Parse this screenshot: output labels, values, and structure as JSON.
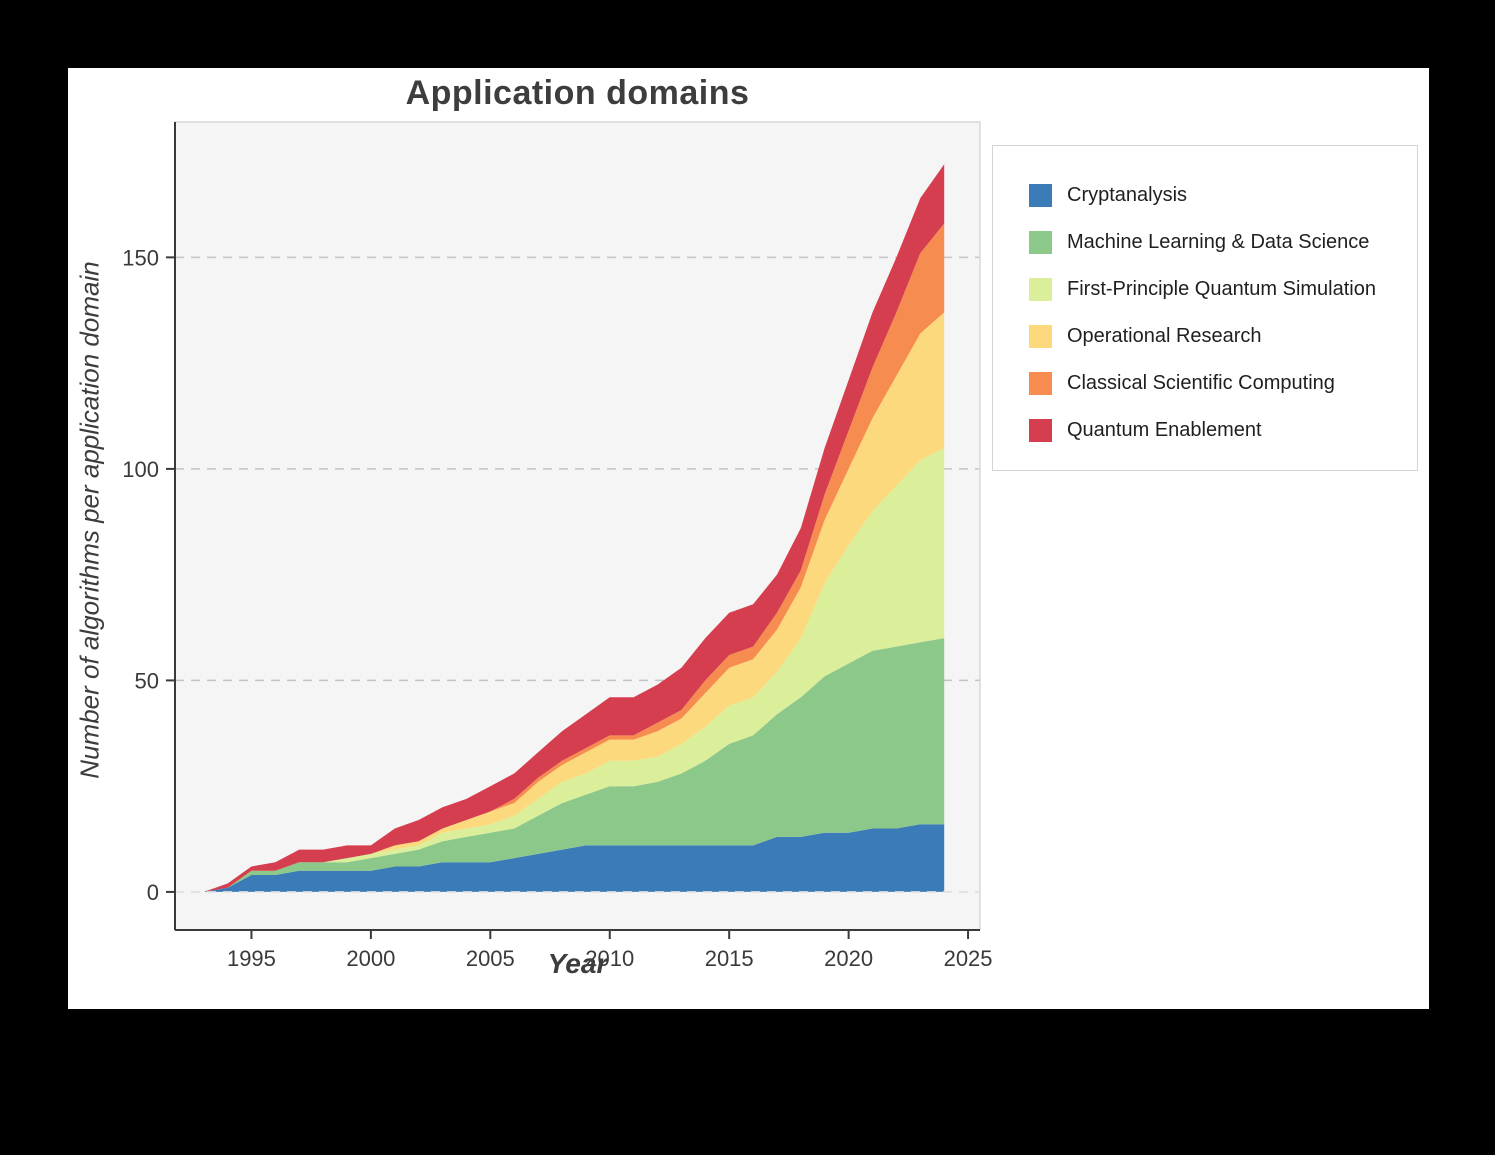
{
  "chart_data": {
    "type": "area",
    "stacked": true,
    "title": "Application domains",
    "xlabel": "Year",
    "ylabel": "Number of algorithms per application domain",
    "x": [
      1993,
      1994,
      1995,
      1996,
      1997,
      1998,
      1999,
      2000,
      2001,
      2002,
      2003,
      2004,
      2005,
      2006,
      2007,
      2008,
      2009,
      2010,
      2011,
      2012,
      2013,
      2014,
      2015,
      2016,
      2017,
      2018,
      2019,
      2020,
      2021,
      2022,
      2023,
      2024
    ],
    "series": [
      {
        "name": "Cryptanalysis",
        "color": "#3b7cb8",
        "values": [
          0,
          1,
          4,
          4,
          5,
          5,
          5,
          5,
          6,
          6,
          7,
          7,
          7,
          8,
          9,
          10,
          11,
          11,
          11,
          11,
          11,
          11,
          11,
          11,
          13,
          13,
          14,
          14,
          15,
          15,
          16,
          16
        ]
      },
      {
        "name": "Machine Learning & Data Science",
        "color": "#8cc88a",
        "values": [
          0,
          0,
          1,
          1,
          2,
          2,
          2,
          3,
          3,
          4,
          5,
          6,
          7,
          7,
          9,
          11,
          12,
          14,
          14,
          15,
          17,
          20,
          24,
          26,
          29,
          33,
          37,
          40,
          42,
          43,
          43,
          44
        ]
      },
      {
        "name": "First-Principle Quantum Simulation",
        "color": "#dbee9a",
        "values": [
          0,
          0,
          0,
          0,
          0,
          0,
          1,
          1,
          1,
          1,
          2,
          2,
          2,
          3,
          4,
          5,
          5,
          6,
          6,
          6,
          7,
          8,
          9,
          9,
          10,
          14,
          22,
          28,
          33,
          38,
          43,
          45
        ]
      },
      {
        "name": "Operational Research",
        "color": "#fdd97e",
        "values": [
          0,
          0,
          0,
          0,
          0,
          0,
          0,
          0,
          1,
          1,
          1,
          2,
          3,
          3,
          4,
          4,
          5,
          5,
          5,
          6,
          6,
          8,
          9,
          9,
          10,
          12,
          15,
          18,
          22,
          26,
          30,
          32
        ]
      },
      {
        "name": "Classical Scientific Computing",
        "color": "#f78c51",
        "values": [
          0,
          0,
          0,
          0,
          0,
          0,
          0,
          0,
          0,
          0,
          0,
          0,
          0,
          1,
          1,
          1,
          1,
          1,
          1,
          2,
          2,
          3,
          3,
          3,
          4,
          4,
          6,
          9,
          12,
          15,
          19,
          21
        ]
      },
      {
        "name": "Quantum Enablement",
        "color": "#d53e4f",
        "values": [
          0,
          1,
          1,
          2,
          3,
          3,
          3,
          2,
          4,
          5,
          5,
          5,
          6,
          6,
          6,
          7,
          8,
          9,
          9,
          9,
          10,
          10,
          10,
          10,
          9,
          10,
          11,
          12,
          13,
          13,
          13,
          14
        ]
      }
    ],
    "xticks": [
      1995,
      2000,
      2005,
      2010,
      2015,
      2020,
      2025
    ],
    "yticks": [
      0,
      50,
      100,
      150
    ],
    "xlim": [
      1991.8,
      2025.5
    ],
    "ylim": [
      -9,
      182
    ],
    "grid": "horizontal-dashed",
    "grid_color": "#c4c4c4",
    "plot_bg": "#f5f5f5",
    "axis_color": "#3a3a3a",
    "legend_position": "right"
  }
}
